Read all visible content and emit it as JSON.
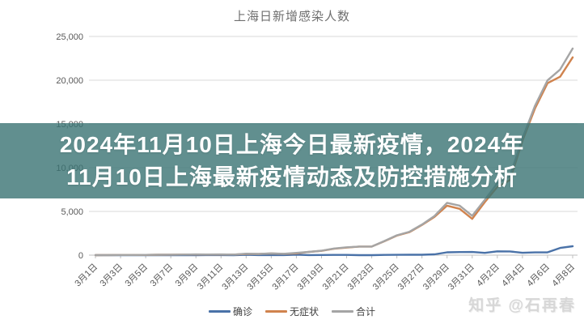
{
  "title": "上海日新增感染人数",
  "overlay": {
    "line1": "2024年11月10日上海今日最新疫情，2024年",
    "line2": "11月10日上海最新疫情动态及防控措施分析",
    "background": "rgba(58,115,115,0.8)"
  },
  "watermark": "知乎 @石再春",
  "legend": [
    {
      "label": "确诊",
      "color": "#4a72a8"
    },
    {
      "label": "无症状",
      "color": "#d0834e"
    },
    {
      "label": "合计",
      "color": "#a5a5a5"
    }
  ],
  "chart_data": {
    "type": "line",
    "title": "上海日新增感染人数",
    "x": [
      "3月1日",
      "3月2日",
      "3月3日",
      "3月4日",
      "3月5日",
      "3月6日",
      "3月7日",
      "3月8日",
      "3月9日",
      "3月10日",
      "3月11日",
      "3月12日",
      "3月13日",
      "3月14日",
      "3月15日",
      "3月16日",
      "3月17日",
      "3月18日",
      "3月19日",
      "3月20日",
      "3月21日",
      "3月22日",
      "3月23日",
      "3月24日",
      "3月25日",
      "3月26日",
      "3月27日",
      "3月28日",
      "3月29日",
      "3月30日",
      "3月31日",
      "4月1日",
      "4月2日",
      "4月3日",
      "4月4日",
      "4月5日",
      "4月6日",
      "4月7日",
      "4月8日"
    ],
    "x_tick_step": 2,
    "x_tick_labels": [
      "3月1日",
      "3月3日",
      "3月5日",
      "3月7日",
      "3月9日",
      "3月11日",
      "3月13日",
      "3月15日",
      "3月17日",
      "3月19日",
      "3月21日",
      "3月23日",
      "3月25日",
      "3月27日",
      "3月29日",
      "3月31日",
      "4月2日",
      "4月4日",
      "4月6日",
      "4月8日"
    ],
    "series": [
      {
        "name": "确诊",
        "color": "#4a72a8",
        "values": [
          1,
          3,
          2,
          3,
          0,
          3,
          4,
          3,
          4,
          11,
          5,
          1,
          41,
          9,
          5,
          8,
          57,
          8,
          17,
          24,
          31,
          4,
          4,
          29,
          38,
          45,
          50,
          96,
          326,
          355,
          358,
          260,
          438,
          425,
          268,
          311,
          322,
          824,
          1015
        ]
      },
      {
        "name": "无症状",
        "color": "#d0834e",
        "values": [
          1,
          5,
          14,
          16,
          28,
          45,
          51,
          62,
          76,
          64,
          78,
          64,
          128,
          130,
          197,
          150,
          203,
          366,
          492,
          734,
          865,
          977,
          979,
          1580,
          2231,
          2631,
          3450,
          4381,
          5656,
          5298,
          4144,
          6051,
          7788,
          8581,
          13086,
          16766,
          19660,
          20398,
          22609
        ]
      },
      {
        "name": "合计",
        "color": "#a5a5a5",
        "values": [
          2,
          8,
          16,
          19,
          28,
          48,
          55,
          65,
          80,
          75,
          83,
          65,
          169,
          139,
          202,
          158,
          260,
          374,
          509,
          758,
          896,
          981,
          983,
          1609,
          2269,
          2676,
          3500,
          4477,
          5982,
          5653,
          4502,
          6311,
          8226,
          9006,
          13354,
          17077,
          19982,
          21222,
          23624
        ]
      }
    ],
    "ylim": [
      0,
      25000
    ],
    "y_ticks": [
      0,
      5000,
      10000,
      15000,
      20000,
      25000
    ],
    "grid": "horizontal",
    "legend_position": "bottom",
    "grid_color": "#d9d9d9",
    "axis_color": "#bfbfbf",
    "axis_label_color": "#595959"
  }
}
